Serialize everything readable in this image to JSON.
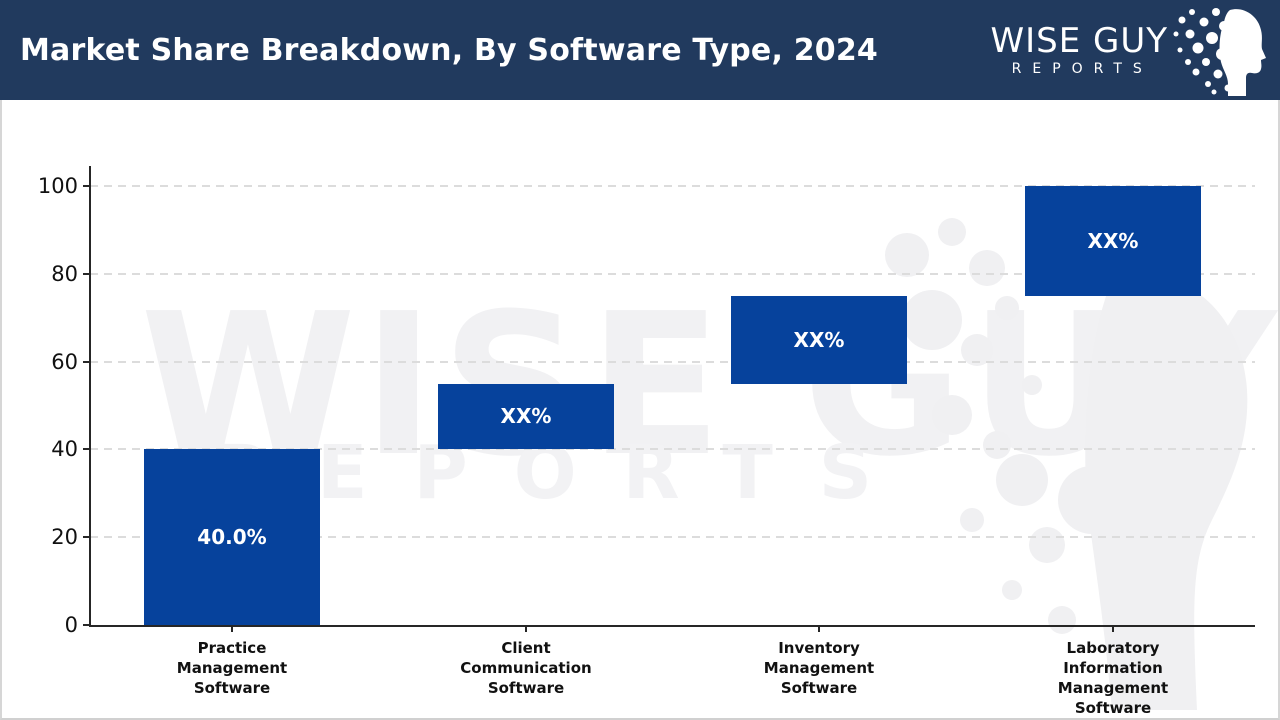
{
  "header": {
    "title": "Market Share Breakdown, By Software Type, 2024",
    "logo": {
      "line1": "WISE GUY",
      "line2": "REPORTS"
    }
  },
  "watermark": {
    "line1": "WISE GUY",
    "line2": "REPORTS"
  },
  "chart_data": {
    "type": "bar",
    "subtype": "waterfall",
    "title": "Market Share Breakdown, By Software Type, 2024",
    "categories": [
      "Practice\nManagement\nSoftware",
      "Client\nCommunication\nSoftware",
      "Inventory\nManagement\nSoftware",
      "Laboratory\nInformation\nManagement\nSoftware"
    ],
    "bars": [
      {
        "start": 0,
        "end": 40,
        "label": "40.0%"
      },
      {
        "start": 40,
        "end": 55,
        "label": "XX%"
      },
      {
        "start": 55,
        "end": 75,
        "label": "XX%"
      },
      {
        "start": 75,
        "end": 100,
        "label": "XX%"
      }
    ],
    "yticks": [
      0,
      20,
      40,
      60,
      80,
      100
    ],
    "ylim": [
      0,
      100
    ],
    "xlabel": "",
    "ylabel": "",
    "grid": "horizontal-dashed",
    "legend": "none",
    "bar_color": "#06429c",
    "bar_label_color": "#ffffff"
  },
  "colors": {
    "header_bg": "#213a5e",
    "header_text": "#ffffff",
    "bar": "#06429c",
    "gridline": "#dcdcdc",
    "axis": "#262626",
    "watermark": "#f1f1f3"
  }
}
